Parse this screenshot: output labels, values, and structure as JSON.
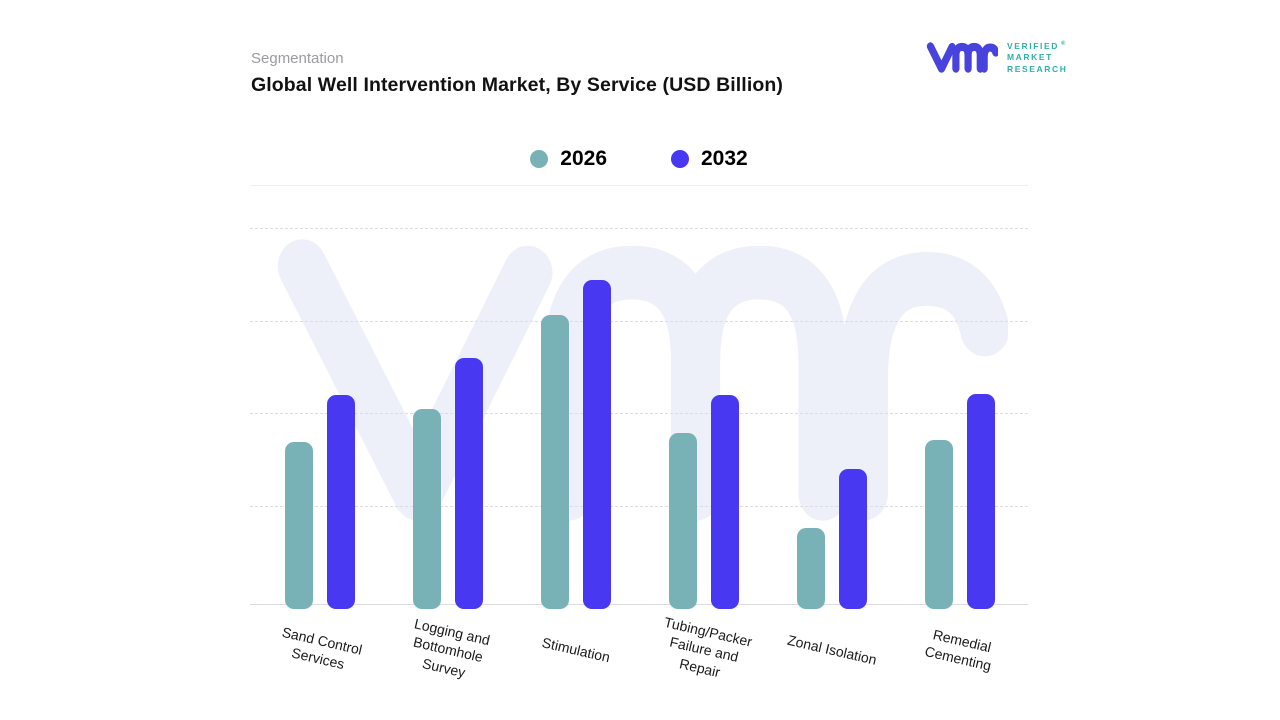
{
  "header": {
    "eyebrow": "Segmentation",
    "title": "Global Well Intervention Market, By Service (USD Billion)"
  },
  "logo": {
    "glyph": "vmr-monogram",
    "lines": [
      "VERIFIED",
      "MARKET",
      "RESEARCH"
    ],
    "registered": "®",
    "glyph_color": "#4743dc",
    "text_color": "#2db1a9"
  },
  "legend": {
    "items": [
      {
        "label": "2026",
        "color": "#79b2b6"
      },
      {
        "label": "2032",
        "color": "#4838f2"
      }
    ]
  },
  "chart_data": {
    "type": "bar",
    "title": "Global Well Intervention Market, By Service (USD Billion)",
    "categories": [
      "Sand Control Services",
      "Logging and Bottomhole Survey",
      "Stimulation",
      "Tubing/Packer Failure and Repair",
      "Zonal Isolation",
      "Remedial Cementing"
    ],
    "category_label_lines": [
      [
        "Sand Control",
        "Services"
      ],
      [
        "Logging and",
        "Bottomhole",
        "Survey"
      ],
      [
        "Stimulation"
      ],
      [
        "Tubing/Packer",
        "Failure and",
        "Repair"
      ],
      [
        "Zonal Isolation"
      ],
      [
        "Remedial",
        "Cementing"
      ]
    ],
    "series": [
      {
        "name": "2026",
        "color": "#79b2b6",
        "values": [
          1.76,
          2.12,
          3.13,
          1.86,
          0.83,
          1.78
        ]
      },
      {
        "name": "2032",
        "color": "#4838f2",
        "values": [
          2.27,
          2.67,
          3.51,
          2.27,
          1.47,
          2.28
        ]
      }
    ],
    "xlabel": "",
    "ylabel": "",
    "y_axis": {
      "ylim": [
        0,
        4.5
      ],
      "gridlines_at": [
        1,
        2,
        3,
        4
      ],
      "grid_style": "dashed",
      "tick_labels_visible": false,
      "units_note": "no numeric axis labels shown; values estimated in gridline units"
    },
    "legend_position": "top-center",
    "bar_corner": "rounded"
  },
  "watermark": {
    "name": "vmr-monogram-watermark",
    "color": "#eef0f9"
  }
}
